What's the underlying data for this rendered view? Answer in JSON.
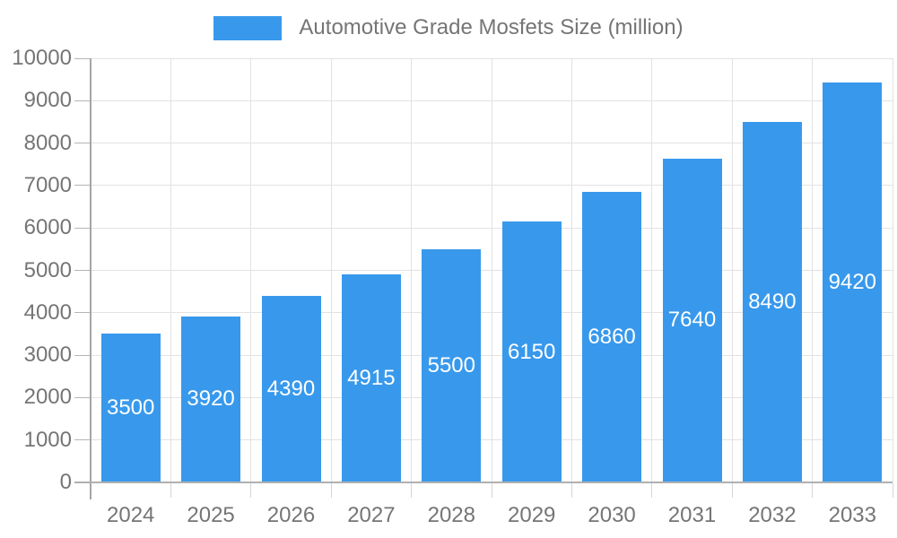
{
  "legend": {
    "label": "Automotive Grade Mosfets Size (million)"
  },
  "colors": {
    "bar": "#3899ec",
    "axis_text": "#757575",
    "value_label_text": "#ffffff",
    "gridline": "#e2e2e2",
    "axis_line": "#a5a5a5"
  },
  "chart_data": {
    "type": "bar",
    "title": "Automotive Grade Mosfets Size (million)",
    "categories": [
      "2024",
      "2025",
      "2026",
      "2027",
      "2028",
      "2029",
      "2030",
      "2031",
      "2032",
      "2033"
    ],
    "series": [
      {
        "name": "Automotive Grade Mosfets Size (million)",
        "color": "#3899ec",
        "values": [
          3500,
          3920,
          4390,
          4915,
          5500,
          6150,
          6860,
          7640,
          8490,
          9420
        ]
      }
    ],
    "value_labels": [
      "3500",
      "3920",
      "4390",
      "4915",
      "5500",
      "6150",
      "6860",
      "7640",
      "8490",
      "9420"
    ],
    "xlabel": "",
    "ylabel": "",
    "ylim": [
      0,
      10000
    ],
    "ytick_step": 1000,
    "yticks": [
      "0",
      "1000",
      "2000",
      "3000",
      "4000",
      "5000",
      "6000",
      "7000",
      "8000",
      "9000",
      "10000"
    ],
    "grid": true,
    "legend_position": "top-center",
    "value_label_position": "inside-center",
    "value_label_color": "#ffffff"
  }
}
